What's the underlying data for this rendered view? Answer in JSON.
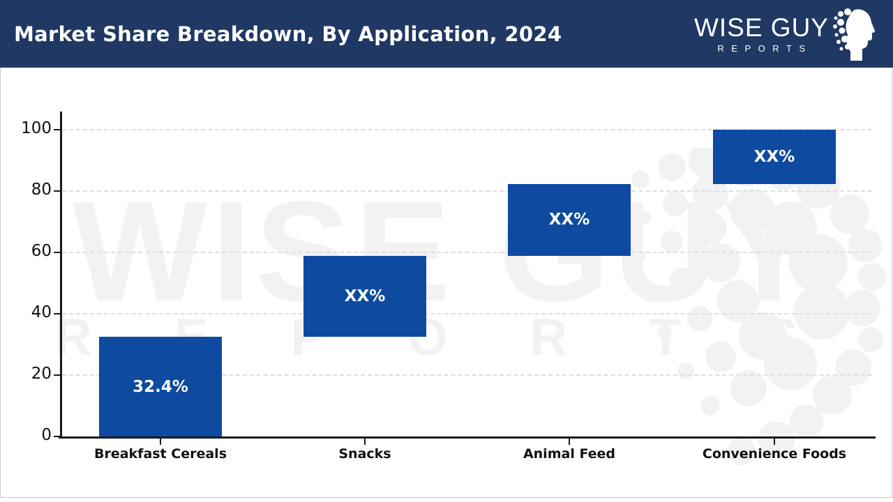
{
  "page": {
    "background": "#ffffff",
    "border_color": "#cccccc"
  },
  "header": {
    "background": "#1f3864",
    "title": "Market Share Breakdown, By Application, 2024",
    "logo": {
      "name": "WISE GUY",
      "subname": "REPORTS",
      "icon": "dotted-head-profile"
    }
  },
  "watermark": {
    "name": "WISE GUY",
    "subname": "REPORTS",
    "icon": "dotted-head-profile"
  },
  "chart_data": {
    "type": "bar",
    "subtype": "waterfall-percentage-breakdown",
    "title": "Market Share Breakdown, By Application, 2024",
    "categories": [
      "Breakfast Cereals",
      "Snacks",
      "Animal Feed",
      "Convenience Foods"
    ],
    "series": [
      {
        "name": "Breakfast Cereals",
        "start": 0,
        "end": 32.4,
        "value": 32.4,
        "label": "32.4%"
      },
      {
        "name": "Snacks",
        "start": 32.4,
        "end": 58.9,
        "value": 26.5,
        "label": "XX%"
      },
      {
        "name": "Animal Feed",
        "start": 58.9,
        "end": 82.3,
        "value": 23.4,
        "label": "XX%"
      },
      {
        "name": "Convenience Foods",
        "start": 82.3,
        "end": 100,
        "value": 17.7,
        "label": "XX%"
      }
    ],
    "xlabel": "",
    "ylabel": "",
    "ylim": [
      0,
      100
    ],
    "yticks": [
      0,
      20,
      40,
      60,
      80,
      100
    ],
    "grid": "horizontal-dashed",
    "legend": "none",
    "bar_color": "#0d4aa0",
    "bar_label_color": "#ffffff",
    "axis_color": "#1a1a1a",
    "grid_color": "#dedede",
    "tick_label_color": "#111111"
  }
}
